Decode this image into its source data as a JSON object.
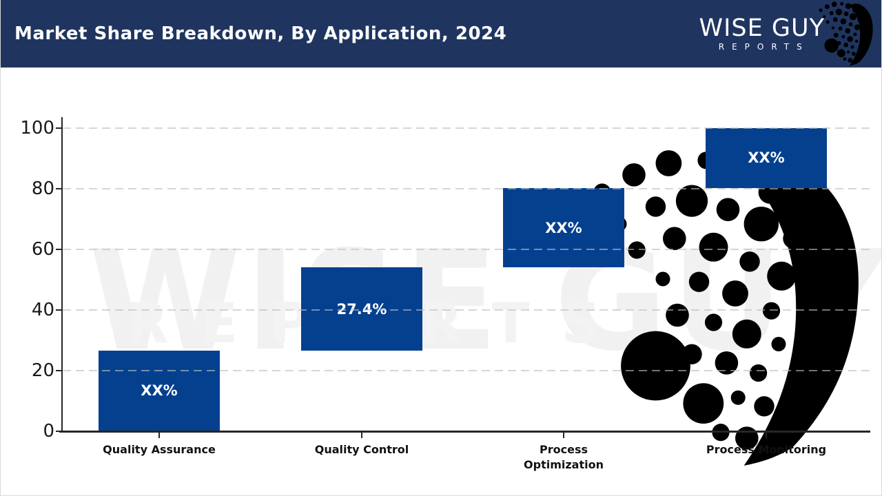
{
  "header": {
    "title": "Market Share Breakdown, By Application, 2024",
    "bg_color": "#1f3560",
    "logo": {
      "name": "WISE GUY",
      "subtitle": "REPORTS",
      "face_icon": "dotted-face-profile"
    }
  },
  "watermark": {
    "line1": "WISE GUY",
    "line2": "REPORTS"
  },
  "chart_data": {
    "type": "bar",
    "subtype": "floating-waterfall",
    "title": "Market Share Breakdown, By Application, 2024",
    "categories": [
      "Quality Assurance",
      "Quality Control",
      "Process\nOptimization",
      "Process Monitoring"
    ],
    "series": [
      {
        "name": "Market share (%)",
        "segments": [
          {
            "category": "Quality Assurance",
            "start": 0,
            "end": 26.6,
            "label": "XX%"
          },
          {
            "category": "Quality Control",
            "start": 26.6,
            "end": 54.0,
            "label": "27.4%"
          },
          {
            "category": "Process Optimization",
            "start": 54.0,
            "end": 80.3,
            "label": "XX%"
          },
          {
            "category": "Process Monitoring",
            "start": 80.3,
            "end": 100.0,
            "label": "XX%"
          }
        ]
      }
    ],
    "xlabel": "",
    "ylabel": "",
    "yticks": [
      0,
      20,
      40,
      60,
      80,
      100
    ],
    "ylim": [
      0,
      103.6
    ],
    "grid": {
      "axis": "y",
      "style": "dashed",
      "color": "#bdbdbd",
      "drawn_over_bars": true
    },
    "legend": "none",
    "bar_color": "#05408f",
    "bar_label_color": "#ffffff",
    "axis_color": "#262626",
    "tick_label_color": "#1a1a1a"
  }
}
